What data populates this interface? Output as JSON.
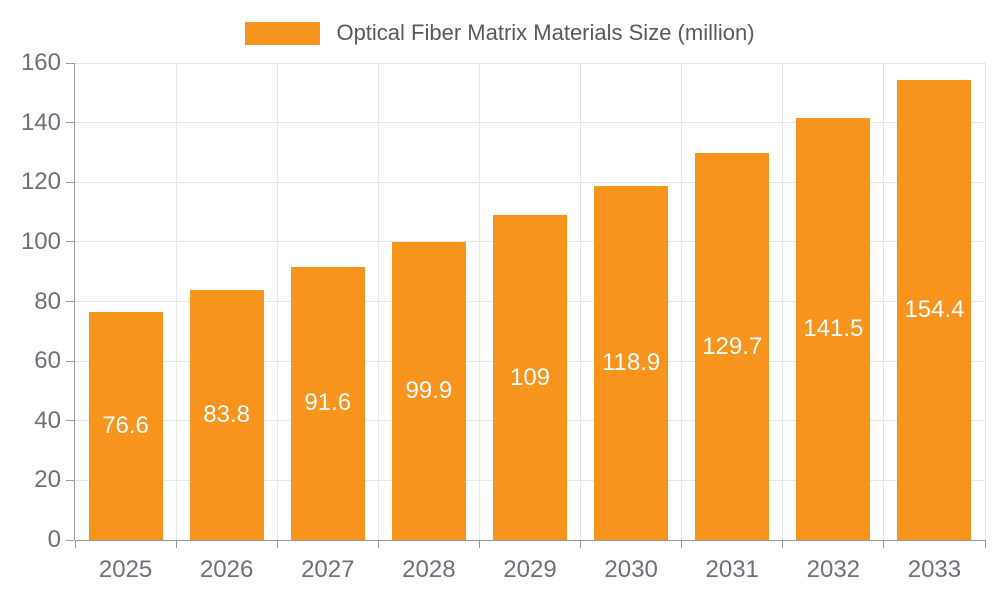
{
  "chart_data": {
    "type": "bar",
    "series_name": "Optical Fiber Matrix Materials Size (million)",
    "categories": [
      "2025",
      "2026",
      "2027",
      "2028",
      "2029",
      "2030",
      "2031",
      "2032",
      "2033"
    ],
    "values": [
      76.6,
      83.8,
      91.6,
      99.9,
      109,
      118.9,
      129.7,
      141.5,
      154.4
    ],
    "value_labels": [
      "76.6",
      "83.8",
      "91.6",
      "99.9",
      "109",
      "118.9",
      "129.7",
      "141.5",
      "154.4"
    ],
    "ylabel": "",
    "xlabel": "",
    "ylim": [
      0,
      160
    ],
    "ytick_step": 20,
    "grid": true,
    "legend_position": "top-center",
    "colors": {
      "bar": "#F7941E",
      "grid": "#E5E7EA",
      "axis": "#999999",
      "axis_label": "#6E7079",
      "value_label": "#FFFFFF",
      "legend_label": "#595959",
      "background": "#FFFFFF"
    }
  }
}
